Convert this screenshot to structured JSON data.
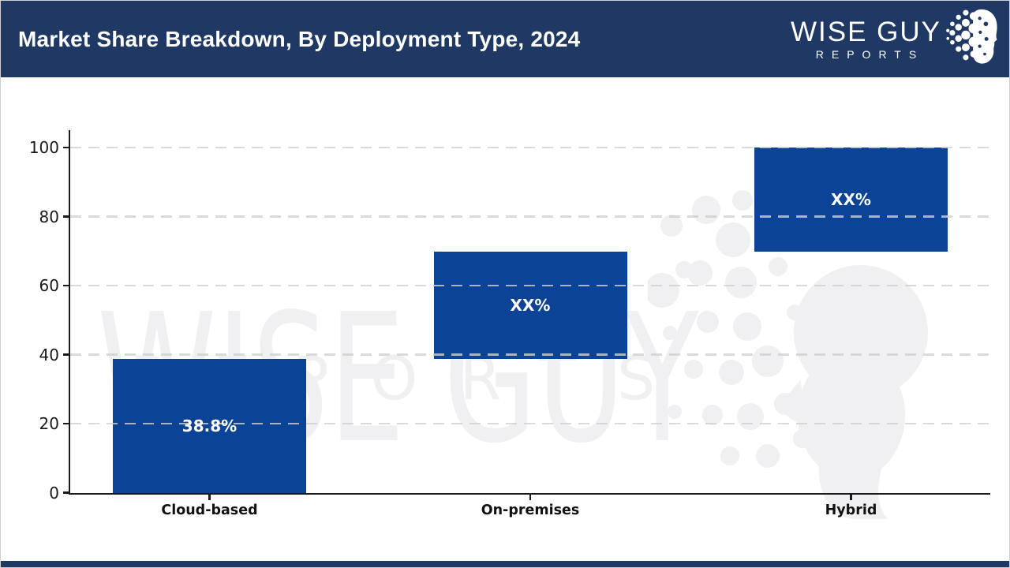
{
  "page": {
    "title": "Market Share Breakdown, By Deployment Type, 2024"
  },
  "brand": {
    "name": "WISE GUY",
    "subtitle": "REPORTS"
  },
  "watermark": {
    "line1": "WISE GUY",
    "line2": "REPORTS"
  },
  "chart_data": {
    "type": "bar",
    "subtype": "floating-waterfall-segments",
    "title": "Market Share Breakdown, By Deployment Type, 2024",
    "categories": [
      "Cloud-based",
      "On-premises",
      "Hybrid"
    ],
    "segments": [
      {
        "category": "Cloud-based",
        "from": 0,
        "to": 38.8,
        "label": "38.8%"
      },
      {
        "category": "On-premises",
        "from": 38.8,
        "to": 69.8,
        "label": "XX%"
      },
      {
        "category": "Hybrid",
        "from": 69.8,
        "to": 100,
        "label": "XX%"
      }
    ],
    "xlabel": "",
    "ylabel": "",
    "ylim": [
      0,
      105
    ],
    "yticks": [
      0,
      20,
      40,
      60,
      80,
      100
    ],
    "grid": {
      "horizontal": true,
      "style": "dashed",
      "over_bars": true
    },
    "legend": "none",
    "colors": {
      "bar": "#0b4397",
      "bar_label": "#ffffff",
      "header_bar": "#1f3864",
      "footer_bar": "#1f3864",
      "gridline": "#d9d9d9",
      "axis": "#1a1a1a",
      "watermark": "#f0f0f2"
    }
  }
}
